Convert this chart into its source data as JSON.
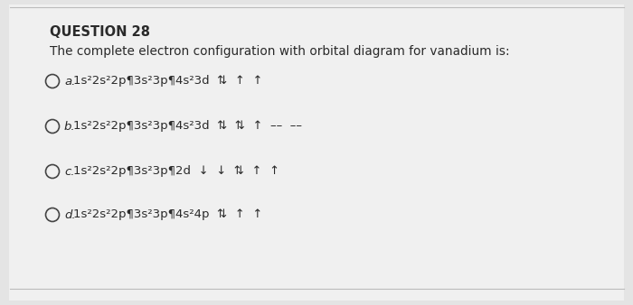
{
  "title": "QUESTION 28",
  "question": "The complete electron configuration with orbital diagram for vanadium is:",
  "options": [
    {
      "label": "a.",
      "config": "1s²2s²2p¶3s²3p¶4s²3d",
      "arrows": "⇅  ↑  ↑"
    },
    {
      "label": "b.",
      "config": "1s²2s²2p¶3s²3p¶4s²3d",
      "arrows": "⇅  ⇅  ↑  ––  ––"
    },
    {
      "label": "c.",
      "config": "1s²2s²2p¶3s²3p¶2d",
      "arrows": "↓  ↓  ⇅  ↑  ↑"
    },
    {
      "label": "d.",
      "config": "1s²2s²2p¶3s²3p¶4s²4p",
      "arrows": "⇅  ↑  ↑"
    }
  ],
  "bg_color": "#e4e4e4",
  "panel_color": "#f0f0f0",
  "text_color": "#2a2a2a",
  "title_fontsize": 10.5,
  "question_fontsize": 9.8,
  "option_fontsize": 9.5,
  "circle_color": "#444444"
}
